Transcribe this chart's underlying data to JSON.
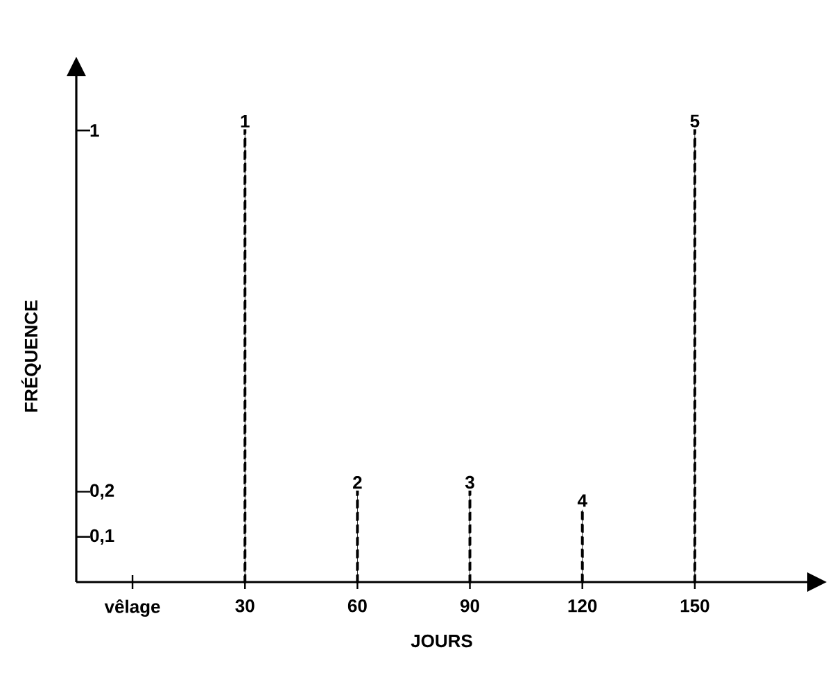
{
  "chart_data": {
    "type": "bar",
    "xlabel": "JOURS",
    "ylabel": "FRÉQUENCE",
    "x": [
      30,
      60,
      90,
      120,
      150
    ],
    "values": [
      1,
      0.2,
      0.2,
      0.16,
      1
    ],
    "color": "#000000",
    "line_style": "dashed",
    "xlim": [
      -15,
      180
    ],
    "ylim": [
      0,
      1.12
    ],
    "xticks": [
      {
        "value": 0,
        "label": "vêlage"
      },
      30,
      60,
      90,
      120,
      150
    ],
    "yticks": [
      {
        "value": 0.1,
        "label": "0,1"
      },
      {
        "value": 0.2,
        "label": "0,2"
      },
      1
    ],
    "annotations": [
      {
        "text": "1",
        "x": 30,
        "y": 1
      },
      {
        "text": "2",
        "x": 60,
        "y": 0.2
      },
      {
        "text": "3",
        "x": 90,
        "y": 0.2
      },
      {
        "text": "4",
        "x": 120,
        "y": 0.16
      },
      {
        "text": "5",
        "x": 150,
        "y": 1
      }
    ]
  }
}
